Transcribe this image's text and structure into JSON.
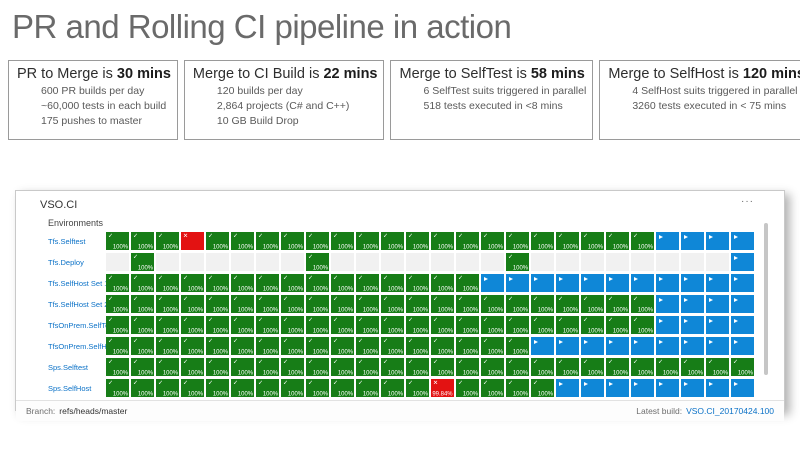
{
  "title": "PR and Rolling CI pipeline in action",
  "stat_boxes": [
    {
      "heading": "PR to Merge is ",
      "value": "30 mins",
      "lines": [
        "600 PR builds per day",
        "~60,000 tests in each build",
        "175 pushes to master"
      ]
    },
    {
      "heading": "Merge to CI Build is ",
      "value": "22 mins",
      "lines": [
        "120 builds per day",
        "2,864 projects (C# and C++)",
        "10 GB Build Drop"
      ]
    },
    {
      "heading": "Merge to SelfTest is ",
      "value": "58 mins",
      "lines": [
        "6 SelfTest suits triggered in parallel",
        "518 tests executed in <8 mins"
      ]
    },
    {
      "heading": "Merge to SelfHost is ",
      "value": "120 mins",
      "lines": [
        "4 SelfHost suits triggered in parallel",
        "3260 tests executed in < 75 mins"
      ]
    }
  ],
  "panel": {
    "title": "VSO.CI",
    "menu_icon": "···",
    "environments_label": "Environments",
    "pass_text": "100%",
    "columns": 26,
    "colors": {
      "pass": "#177d17",
      "running": "#0f87d7",
      "fail": "#e31212",
      "empty": "#f1f1f1",
      "link": "#0c72c7"
    },
    "rows": [
      {
        "label": "Tfs.Selftest",
        "cells": [
          "G",
          "G",
          "G",
          "R",
          "G",
          "G",
          "G",
          "G",
          "G",
          "G",
          "G",
          "G",
          "G",
          "G",
          "G",
          "G",
          "G",
          "G",
          "G",
          "G",
          "G",
          "G",
          "B",
          "B",
          "B",
          "B"
        ]
      },
      {
        "label": "Tfs.Deploy",
        "cells": [
          "E",
          "G",
          "E",
          "E",
          "E",
          "E",
          "E",
          "E",
          "G",
          "E",
          "E",
          "E",
          "E",
          "E",
          "E",
          "E",
          "G",
          "E",
          "E",
          "E",
          "E",
          "E",
          "E",
          "E",
          "E",
          "B"
        ]
      },
      {
        "label": "Tfs.SelfHost Set 1",
        "cells": [
          "G",
          "G",
          "G",
          "G",
          "G",
          "G",
          "G",
          "G",
          "G",
          "G",
          "G",
          "G",
          "G",
          "G",
          "G",
          "B",
          "B",
          "B",
          "B",
          "B",
          "B",
          "B",
          "B",
          "B",
          "B",
          "B"
        ]
      },
      {
        "label": "Tfs.SelfHost Set 2",
        "cells": [
          "G",
          "G",
          "G",
          "G",
          "G",
          "G",
          "G",
          "G",
          "G",
          "G",
          "G",
          "G",
          "G",
          "G",
          "G",
          "G",
          "G",
          "G",
          "G",
          "G",
          "G",
          "G",
          "B",
          "B",
          "B",
          "B"
        ]
      },
      {
        "label": "TfsOnPrem.SelfTest",
        "cells": [
          "G",
          "G",
          "G",
          "G",
          "G",
          "G",
          "G",
          "G",
          "G",
          "G",
          "G",
          "G",
          "G",
          "G",
          "G",
          "G",
          "G",
          "G",
          "G",
          "G",
          "G",
          "G",
          "B",
          "B",
          "B",
          "B"
        ]
      },
      {
        "label": "TfsOnPrem.SelfHost",
        "cells": [
          "G",
          "G",
          "G",
          "G",
          "G",
          "G",
          "G",
          "G",
          "G",
          "G",
          "G",
          "G",
          "G",
          "G",
          "G",
          "G",
          "G",
          "B",
          "B",
          "B",
          "B",
          "B",
          "B",
          "B",
          "B",
          "B"
        ]
      },
      {
        "label": "Sps.Selftest",
        "cells": [
          "G",
          "G",
          "G",
          "G",
          "G",
          "G",
          "G",
          "G",
          "G",
          "G",
          "G",
          "G",
          "G",
          "G",
          "G",
          "G",
          "G",
          "G",
          "G",
          "G",
          "G",
          "G",
          "G",
          "G",
          "G",
          "G"
        ]
      },
      {
        "label": "Sps.SelfHost",
        "cells": [
          "G",
          "G",
          "G",
          "G",
          "G",
          "G",
          "G",
          "G",
          "G",
          "G",
          "G",
          "G",
          "G",
          "R:99.84%",
          "G",
          "G",
          "G",
          "G",
          "B",
          "B",
          "B",
          "B",
          "B",
          "B",
          "B",
          "B"
        ]
      }
    ],
    "footer": {
      "branch_label": "Branch:",
      "branch_value": "refs/heads/master",
      "latest_build_label": "Latest build:",
      "latest_build_value": "VSO.CI_20170424.100"
    }
  }
}
